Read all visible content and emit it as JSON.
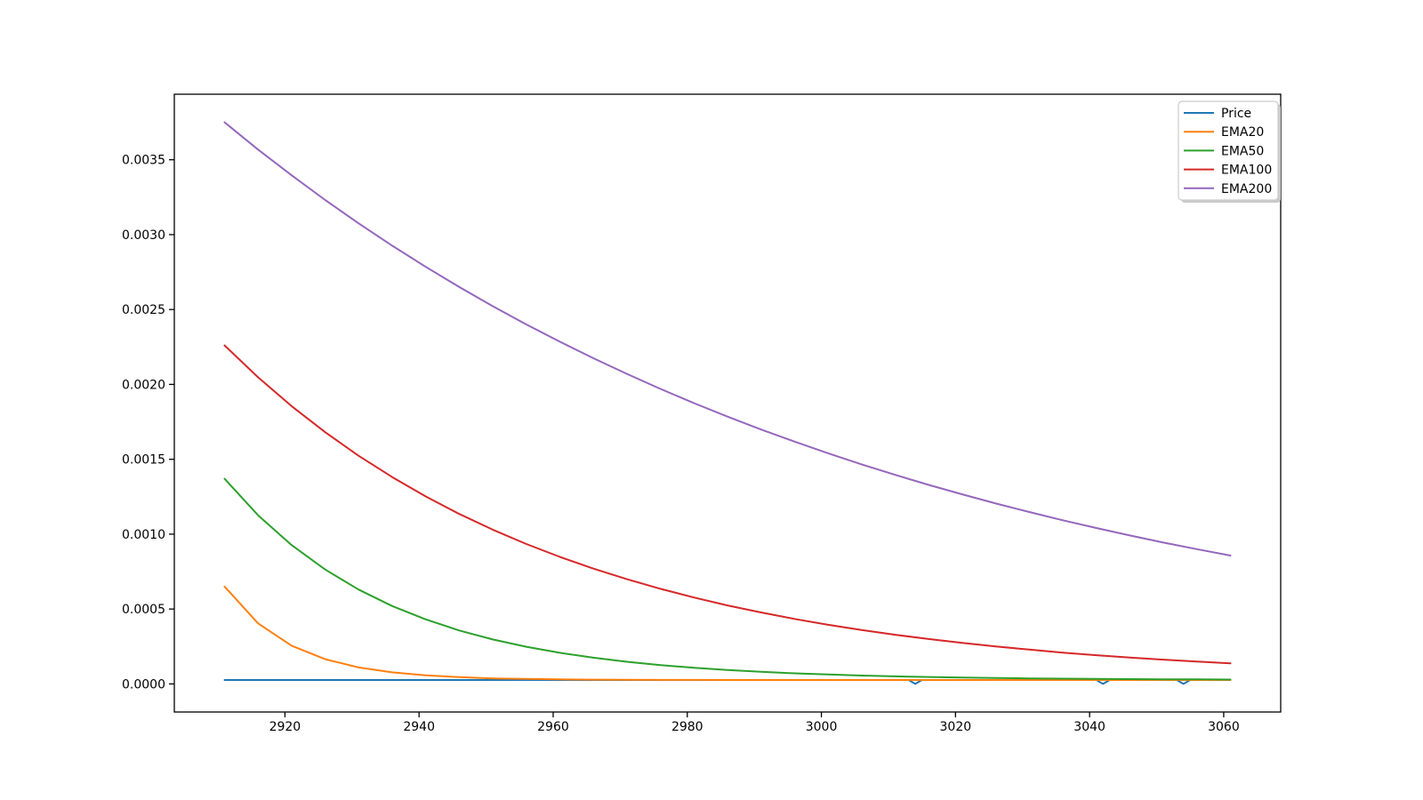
{
  "figure": {
    "background": "#ffffff",
    "axis_color": "#000000",
    "legend_frame_color": "#cccccc",
    "legend_shadow_color": "#c9c9c9",
    "legend_bg": "#ffffff"
  },
  "chart_data": {
    "type": "line",
    "title": "",
    "xlabel": "",
    "ylabel": "",
    "xlim": [
      2903.5,
      3068.5
    ],
    "ylim": [
      -0.0001875,
      0.0039375
    ],
    "grid": false,
    "legend_position": "upper right",
    "x_ticks": [
      2920,
      2940,
      2960,
      2980,
      3000,
      3020,
      3040,
      3060
    ],
    "x_tick_labels": [
      "2920",
      "2940",
      "2960",
      "2980",
      "3000",
      "3020",
      "3040",
      "3060"
    ],
    "y_ticks": [
      0.0,
      0.0005,
      0.001,
      0.0015,
      0.002,
      0.0025,
      0.003,
      0.0035
    ],
    "y_tick_labels": [
      "0.0000",
      "0.0005",
      "0.0010",
      "0.0015",
      "0.0020",
      "0.0025",
      "0.0030",
      "0.0035"
    ],
    "series": [
      {
        "name": "Price",
        "color": "#1f77b4",
        "points": [
          [
            2911,
            2.6e-05
          ],
          [
            3013,
            2.6e-05
          ],
          [
            3014,
            0.0
          ],
          [
            3015,
            2.6e-05
          ],
          [
            3041,
            2.6e-05
          ],
          [
            3042,
            0.0
          ],
          [
            3043,
            2.6e-05
          ],
          [
            3053,
            2.6e-05
          ],
          [
            3054,
            0.0
          ],
          [
            3055,
            2.6e-05
          ],
          [
            3061,
            2.6e-05
          ]
        ]
      },
      {
        "name": "EMA20",
        "color": "#ff7f0e",
        "points": [
          [
            2911,
            0.00065
          ],
          [
            2916,
            0.000404
          ],
          [
            2921,
            0.000255
          ],
          [
            2926,
            0.000165
          ],
          [
            2931,
            0.00011
          ],
          [
            2936,
            7.7e-05
          ],
          [
            2941,
            5.7e-05
          ],
          [
            2946,
            4.5e-05
          ],
          [
            2951,
            3.7e-05
          ],
          [
            2956,
            3.3e-05
          ],
          [
            2961,
            3.02e-05
          ],
          [
            2966,
            2.85e-05
          ],
          [
            2971,
            2.75e-05
          ],
          [
            2976,
            2.7e-05
          ],
          [
            2981,
            2.66e-05
          ],
          [
            2986,
            2.64e-05
          ],
          [
            2991,
            2.62e-05
          ],
          [
            2996,
            2.61e-05
          ],
          [
            3001,
            2.61e-05
          ],
          [
            3006,
            2.6e-05
          ],
          [
            3061,
            2.6e-05
          ]
        ]
      },
      {
        "name": "EMA50",
        "color": "#2ca02c",
        "points": [
          [
            2911,
            0.00137
          ],
          [
            2916,
            0.001126
          ],
          [
            2921,
            0.000927
          ],
          [
            2926,
            0.000764
          ],
          [
            2931,
            0.00063
          ],
          [
            2936,
            0.00052
          ],
          [
            2941,
            0.000431
          ],
          [
            2946,
            0.000357
          ],
          [
            2951,
            0.000297
          ],
          [
            2956,
            0.000248
          ],
          [
            2961,
            0.000208
          ],
          [
            2966,
            0.000175
          ],
          [
            2971,
            0.000148
          ],
          [
            2976,
            0.000126
          ],
          [
            2981,
            0.000108
          ],
          [
            2986,
            9.29e-05
          ],
          [
            2991,
            8.08e-05
          ],
          [
            2996,
            7.09e-05
          ],
          [
            3001,
            6.27e-05
          ],
          [
            3006,
            5.61e-05
          ],
          [
            3011,
            5.06e-05
          ],
          [
            3016,
            4.62e-05
          ],
          [
            3021,
            4.25e-05
          ],
          [
            3026,
            3.96e-05
          ],
          [
            3031,
            3.71e-05
          ],
          [
            3036,
            3.51e-05
          ],
          [
            3041,
            3.34e-05
          ],
          [
            3046,
            3.21e-05
          ],
          [
            3051,
            3.1e-05
          ],
          [
            3056,
            3.01e-05
          ],
          [
            3061,
            2.93e-05
          ]
        ]
      },
      {
        "name": "EMA100",
        "color": "#d62728",
        "points": [
          [
            2911,
            0.00226
          ],
          [
            2916,
            0.002047
          ],
          [
            2921,
            0.001855
          ],
          [
            2926,
            0.001681
          ],
          [
            2931,
            0.001523
          ],
          [
            2936,
            0.001381
          ],
          [
            2941,
            0.001252
          ],
          [
            2946,
            0.001135
          ],
          [
            2951,
            0.00103
          ],
          [
            2956,
            0.000934
          ],
          [
            2961,
            0.000848
          ],
          [
            2966,
            0.00077
          ],
          [
            2971,
            0.000699
          ],
          [
            2976,
            0.000635
          ],
          [
            2981,
            0.000577
          ],
          [
            2986,
            0.000524
          ],
          [
            2991,
            0.000477
          ],
          [
            2996,
            0.000434
          ],
          [
            3001,
            0.000395
          ],
          [
            3006,
            0.00036
          ],
          [
            3011,
            0.000328
          ],
          [
            3016,
            0.0003
          ],
          [
            3021,
            0.000274
          ],
          [
            3026,
            0.00025
          ],
          [
            3031,
            0.000229
          ],
          [
            3036,
            0.000209
          ],
          [
            3041,
            0.000192
          ],
          [
            3046,
            0.000176
          ],
          [
            3051,
            0.000162
          ],
          [
            3056,
            0.000149
          ],
          [
            3061,
            0.000137
          ]
        ]
      },
      {
        "name": "EMA200",
        "color": "#9467bd",
        "points": [
          [
            2911,
            0.00375
          ],
          [
            2916,
            0.003568
          ],
          [
            2921,
            0.003396
          ],
          [
            2926,
            0.003231
          ],
          [
            2931,
            0.003075
          ],
          [
            2936,
            0.002926
          ],
          [
            2941,
            0.002785
          ],
          [
            2946,
            0.00265
          ],
          [
            2951,
            0.002522
          ],
          [
            2956,
            0.0024
          ],
          [
            2961,
            0.002285
          ],
          [
            2966,
            0.002175
          ],
          [
            2971,
            0.00207
          ],
          [
            2976,
            0.00197
          ],
          [
            2981,
            0.001875
          ],
          [
            2986,
            0.001785
          ],
          [
            2991,
            0.001699
          ],
          [
            2996,
            0.001618
          ],
          [
            3001,
            0.00154
          ],
          [
            3006,
            0.001466
          ],
          [
            3011,
            0.001396
          ],
          [
            3016,
            0.001329
          ],
          [
            3021,
            0.001266
          ],
          [
            3026,
            0.001205
          ],
          [
            3031,
            0.001148
          ],
          [
            3036,
            0.001093
          ],
          [
            3041,
            0.001041
          ],
          [
            3046,
            0.000991
          ],
          [
            3051,
            0.000944
          ],
          [
            3056,
            0.0009
          ],
          [
            3061,
            0.000857
          ]
        ]
      }
    ]
  }
}
